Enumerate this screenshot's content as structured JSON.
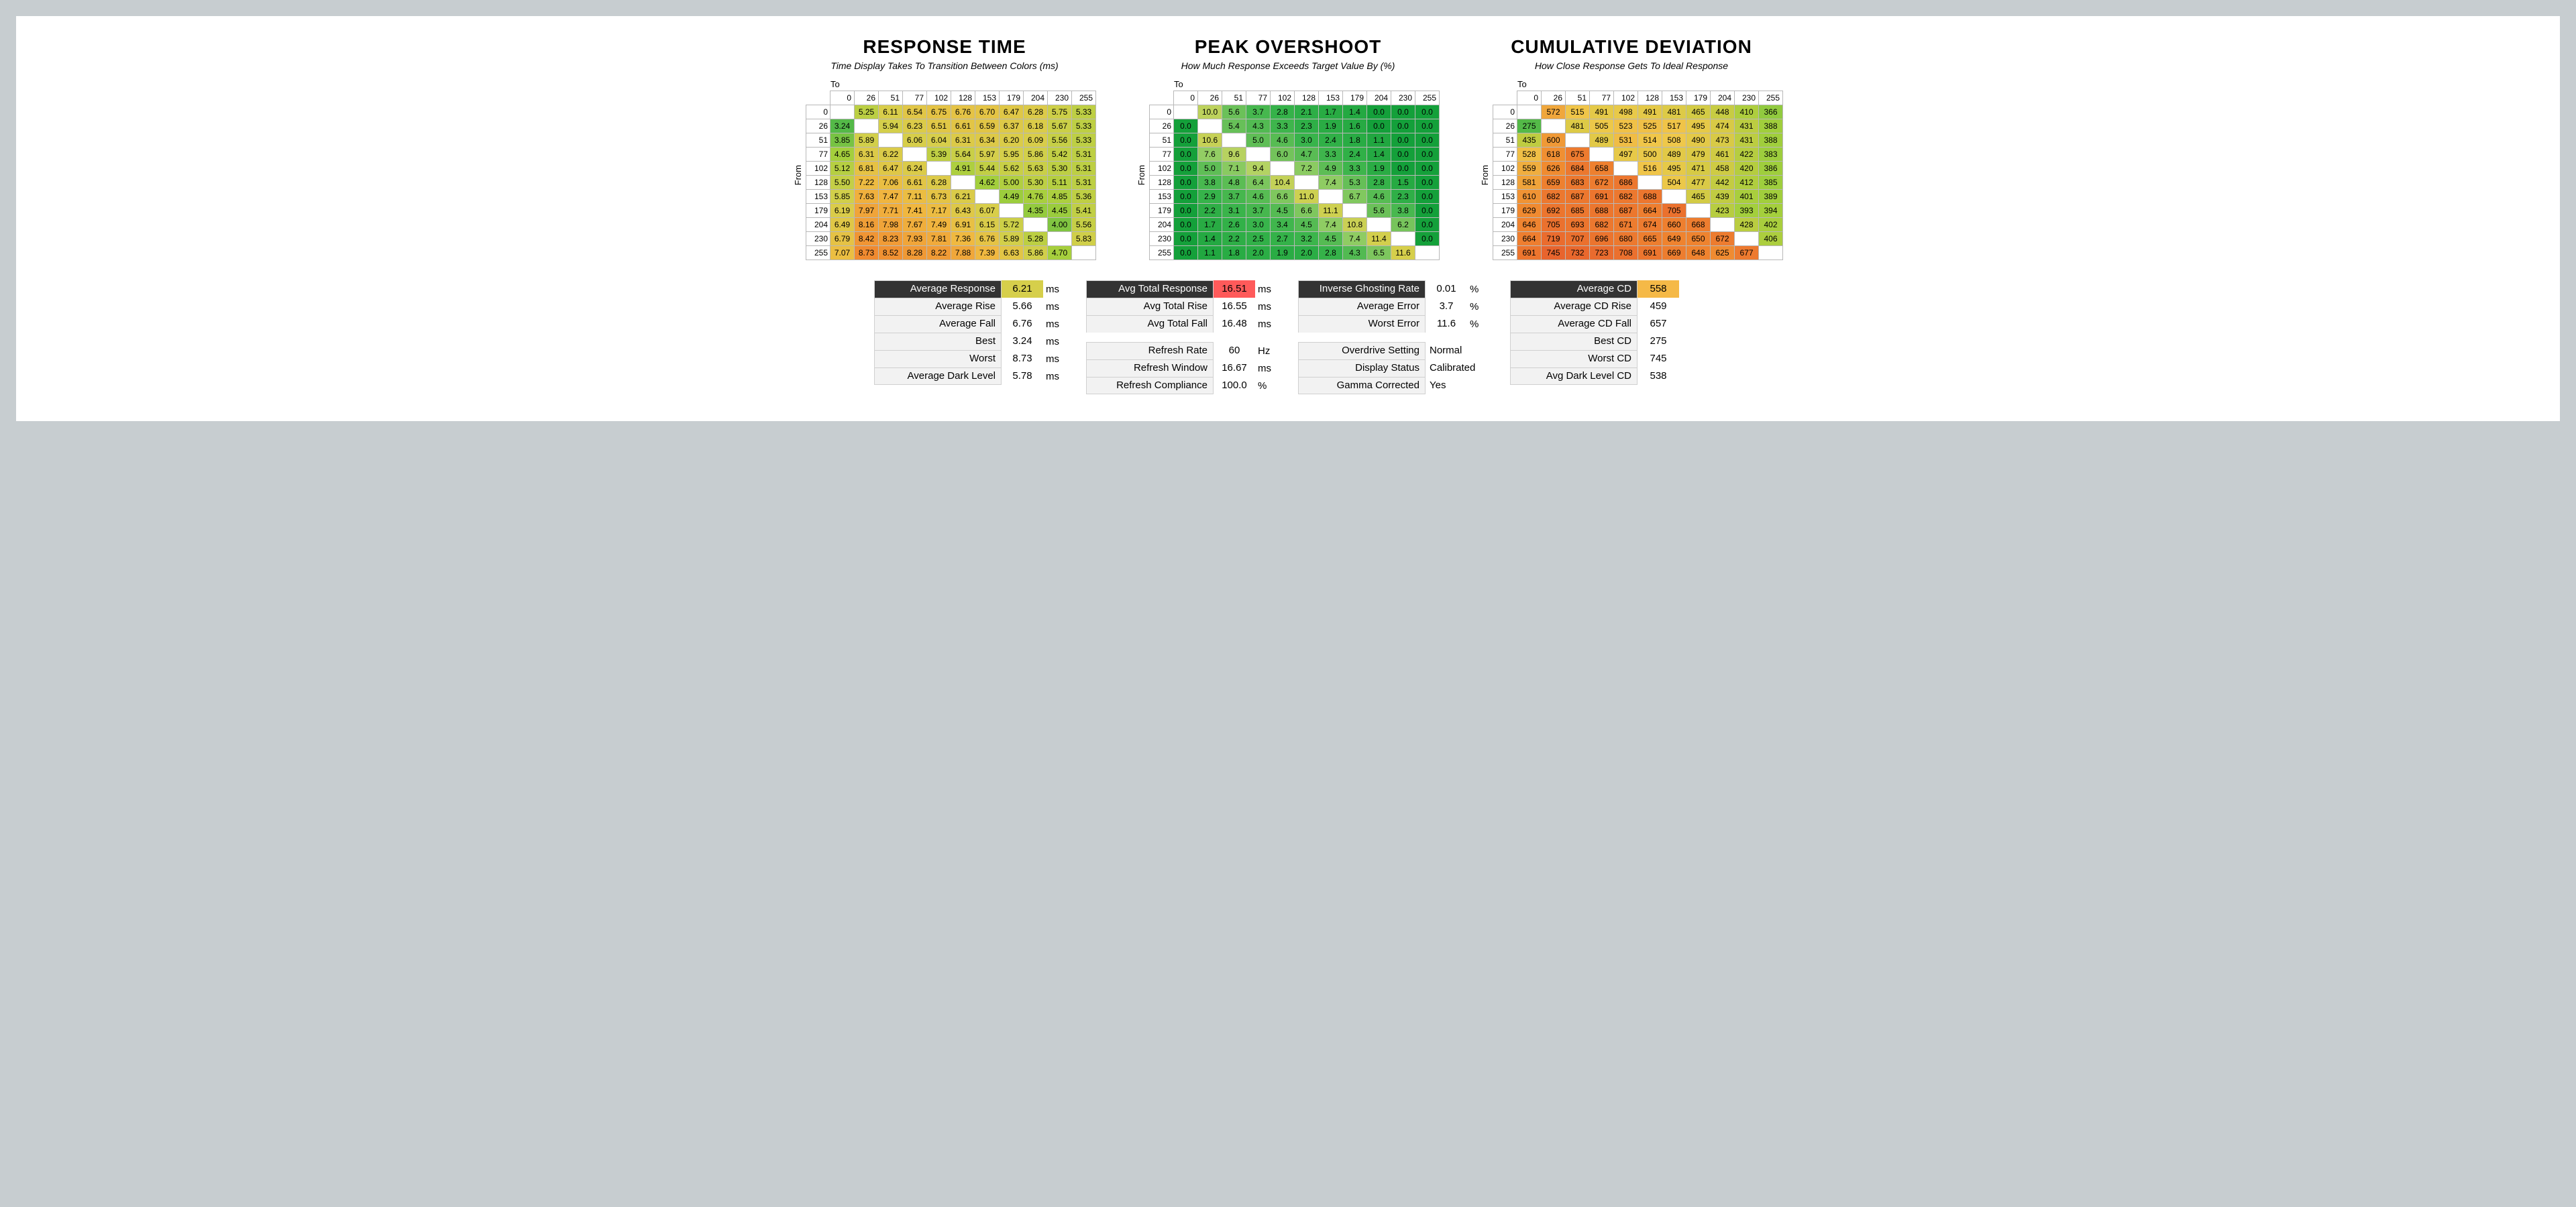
{
  "axis_labels": [
    "0",
    "26",
    "51",
    "77",
    "102",
    "128",
    "153",
    "179",
    "204",
    "230",
    "255"
  ],
  "axis_from_text": "From",
  "axis_to_text": "To",
  "panels": {
    "response": {
      "title": "RESPONSE TIME",
      "subtitle": "Time Display Takes To Transition Between Colors (ms)",
      "cells": [
        [
          null,
          "5.25",
          "6.11",
          "6.54",
          "6.75",
          "6.76",
          "6.70",
          "6.47",
          "6.28",
          "5.75",
          "5.33"
        ],
        [
          "3.24",
          null,
          "5.94",
          "6.23",
          "6.51",
          "6.61",
          "6.59",
          "6.37",
          "6.18",
          "5.67",
          "5.33"
        ],
        [
          "3.85",
          "5.89",
          null,
          "6.06",
          "6.04",
          "6.31",
          "6.34",
          "6.20",
          "6.09",
          "5.56",
          "5.33"
        ],
        [
          "4.65",
          "6.31",
          "6.22",
          null,
          "5.39",
          "5.64",
          "5.97",
          "5.95",
          "5.86",
          "5.42",
          "5.31"
        ],
        [
          "5.12",
          "6.81",
          "6.47",
          "6.24",
          null,
          "4.91",
          "5.44",
          "5.62",
          "5.63",
          "5.30",
          "5.31"
        ],
        [
          "5.50",
          "7.22",
          "7.06",
          "6.61",
          "6.28",
          null,
          "4.62",
          "5.00",
          "5.30",
          "5.11",
          "5.31"
        ],
        [
          "5.85",
          "7.63",
          "7.47",
          "7.11",
          "6.73",
          "6.21",
          null,
          "4.49",
          "4.76",
          "4.85",
          "5.36"
        ],
        [
          "6.19",
          "7.97",
          "7.71",
          "7.41",
          "7.17",
          "6.43",
          "6.07",
          null,
          "4.35",
          "4.45",
          "5.41"
        ],
        [
          "6.49",
          "8.16",
          "7.98",
          "7.67",
          "7.49",
          "6.91",
          "6.15",
          "5.72",
          null,
          "4.00",
          "5.56"
        ],
        [
          "6.79",
          "8.42",
          "8.23",
          "7.93",
          "7.81",
          "7.36",
          "6.76",
          "5.89",
          "5.28",
          null,
          "5.83"
        ],
        [
          "7.07",
          "8.73",
          "8.52",
          "8.28",
          "8.22",
          "7.88",
          "7.39",
          "6.63",
          "5.86",
          "4.70",
          null
        ]
      ],
      "scale": {
        "min": 3.24,
        "max": 8.73,
        "colors": [
          "#54b948",
          "#a3cf3c",
          "#d6cf4b",
          "#f0b940",
          "#f08a30"
        ]
      }
    },
    "overshoot": {
      "title": "PEAK OVERSHOOT",
      "subtitle": "How Much Response Exceeds Target Value By (%)",
      "cells": [
        [
          null,
          "10.0",
          "5.6",
          "3.7",
          "2.8",
          "2.1",
          "1.7",
          "1.4",
          "0.0",
          "0.0",
          "0.0"
        ],
        [
          "0.0",
          null,
          "5.4",
          "4.3",
          "3.3",
          "2.3",
          "1.9",
          "1.6",
          "0.0",
          "0.0",
          "0.0"
        ],
        [
          "0.0",
          "10.6",
          null,
          "5.0",
          "4.6",
          "3.0",
          "2.4",
          "1.8",
          "1.1",
          "0.0",
          "0.0"
        ],
        [
          "0.0",
          "7.6",
          "9.6",
          null,
          "6.0",
          "4.7",
          "3.3",
          "2.4",
          "1.4",
          "0.0",
          "0.0"
        ],
        [
          "0.0",
          "5.0",
          "7.1",
          "9.4",
          null,
          "7.2",
          "4.9",
          "3.3",
          "1.9",
          "0.0",
          "0.0"
        ],
        [
          "0.0",
          "3.8",
          "4.8",
          "6.4",
          "10.4",
          null,
          "7.4",
          "5.3",
          "2.8",
          "1.5",
          "0.0"
        ],
        [
          "0.0",
          "2.9",
          "3.7",
          "4.6",
          "6.6",
          "11.0",
          null,
          "6.7",
          "4.6",
          "2.3",
          "0.0"
        ],
        [
          "0.0",
          "2.2",
          "3.1",
          "3.7",
          "4.5",
          "6.6",
          "11.1",
          null,
          "5.6",
          "3.8",
          "0.0"
        ],
        [
          "0.0",
          "1.7",
          "2.6",
          "3.0",
          "3.4",
          "4.5",
          "7.4",
          "10.8",
          null,
          "6.2",
          "0.0"
        ],
        [
          "0.0",
          "1.4",
          "2.2",
          "2.5",
          "2.7",
          "3.2",
          "4.5",
          "7.4",
          "11.4",
          null,
          "0.0"
        ],
        [
          "0.0",
          "1.1",
          "1.8",
          "2.0",
          "1.9",
          "2.0",
          "2.8",
          "4.3",
          "6.5",
          "11.6",
          null
        ]
      ],
      "scale": {
        "min": 0,
        "max": 11.6,
        "colors": [
          "#14a03a",
          "#36b34a",
          "#6fc25a",
          "#a9d46a",
          "#d6cf4b"
        ]
      }
    },
    "deviation": {
      "title": "CUMULATIVE DEVIATION",
      "subtitle": "How Close Response Gets To Ideal Response",
      "cells": [
        [
          null,
          "572",
          "515",
          "491",
          "498",
          "491",
          "481",
          "465",
          "448",
          "410",
          "366"
        ],
        [
          "275",
          null,
          "481",
          "505",
          "523",
          "525",
          "517",
          "495",
          "474",
          "431",
          "388"
        ],
        [
          "435",
          "600",
          null,
          "489",
          "531",
          "514",
          "508",
          "490",
          "473",
          "431",
          "388"
        ],
        [
          "528",
          "618",
          "675",
          null,
          "497",
          "500",
          "489",
          "479",
          "461",
          "422",
          "383"
        ],
        [
          "559",
          "626",
          "684",
          "658",
          null,
          "516",
          "495",
          "471",
          "458",
          "420",
          "386"
        ],
        [
          "581",
          "659",
          "683",
          "672",
          "686",
          null,
          "504",
          "477",
          "442",
          "412",
          "385"
        ],
        [
          "610",
          "682",
          "687",
          "691",
          "682",
          "688",
          null,
          "465",
          "439",
          "401",
          "389"
        ],
        [
          "629",
          "692",
          "685",
          "688",
          "687",
          "664",
          "705",
          null,
          "423",
          "393",
          "394"
        ],
        [
          "646",
          "705",
          "693",
          "682",
          "671",
          "674",
          "660",
          "668",
          null,
          "428",
          "402"
        ],
        [
          "664",
          "719",
          "707",
          "696",
          "680",
          "665",
          "649",
          "650",
          "672",
          null,
          "406"
        ],
        [
          "691",
          "745",
          "732",
          "723",
          "708",
          "691",
          "669",
          "648",
          "625",
          "677",
          null
        ]
      ],
      "scale": {
        "min": 275,
        "max": 745,
        "colors": [
          "#54b948",
          "#a3cf3c",
          "#f0c84a",
          "#f08a30",
          "#e8642d"
        ]
      }
    }
  },
  "summary": [
    [
      {
        "label": "Average Response",
        "value": "6.21",
        "unit": "ms",
        "hl": "y",
        "label_hl": true
      },
      {
        "label": "Average Rise",
        "value": "5.66",
        "unit": "ms"
      },
      {
        "label": "Average Fall",
        "value": "6.76",
        "unit": "ms"
      },
      {
        "label": "Best",
        "value": "3.24",
        "unit": "ms"
      },
      {
        "label": "Worst",
        "value": "8.73",
        "unit": "ms"
      },
      {
        "label": "Average Dark Level",
        "value": "5.78",
        "unit": "ms"
      }
    ],
    [
      {
        "label": "Avg Total Response",
        "value": "16.51",
        "unit": "ms",
        "hl": "r",
        "label_hl": true
      },
      {
        "label": "Avg Total Rise",
        "value": "16.55",
        "unit": "ms"
      },
      {
        "label": "Avg Total Fall",
        "value": "16.48",
        "unit": "ms"
      },
      {
        "gap": true
      },
      {
        "label": "Refresh Rate",
        "value": "60",
        "unit": "Hz"
      },
      {
        "label": "Refresh Window",
        "value": "16.67",
        "unit": "ms"
      },
      {
        "label": "Refresh Compliance",
        "value": "100.0",
        "unit": "%"
      }
    ],
    [
      {
        "label": "Inverse Ghosting Rate",
        "value": "0.01",
        "unit": "%",
        "label_hl": true
      },
      {
        "label": "Average Error",
        "value": "3.7",
        "unit": "%"
      },
      {
        "label": "Worst Error",
        "value": "11.6",
        "unit": "%"
      },
      {
        "gap": true
      },
      {
        "label": "Overdrive Setting",
        "value": "Normal",
        "wide": true
      },
      {
        "label": "Display Status",
        "value": "Calibrated",
        "wide": true
      },
      {
        "label": "Gamma Corrected",
        "value": "Yes",
        "wide": true
      }
    ],
    [
      {
        "label": "Average CD",
        "value": "558",
        "hl": "o",
        "label_hl": true
      },
      {
        "label": "Average CD Rise",
        "value": "459"
      },
      {
        "label": "Average CD Fall",
        "value": "657"
      },
      {
        "label": "Best CD",
        "value": "275"
      },
      {
        "label": "Worst CD",
        "value": "745"
      },
      {
        "label": "Avg Dark Level CD",
        "value": "538"
      }
    ]
  ]
}
